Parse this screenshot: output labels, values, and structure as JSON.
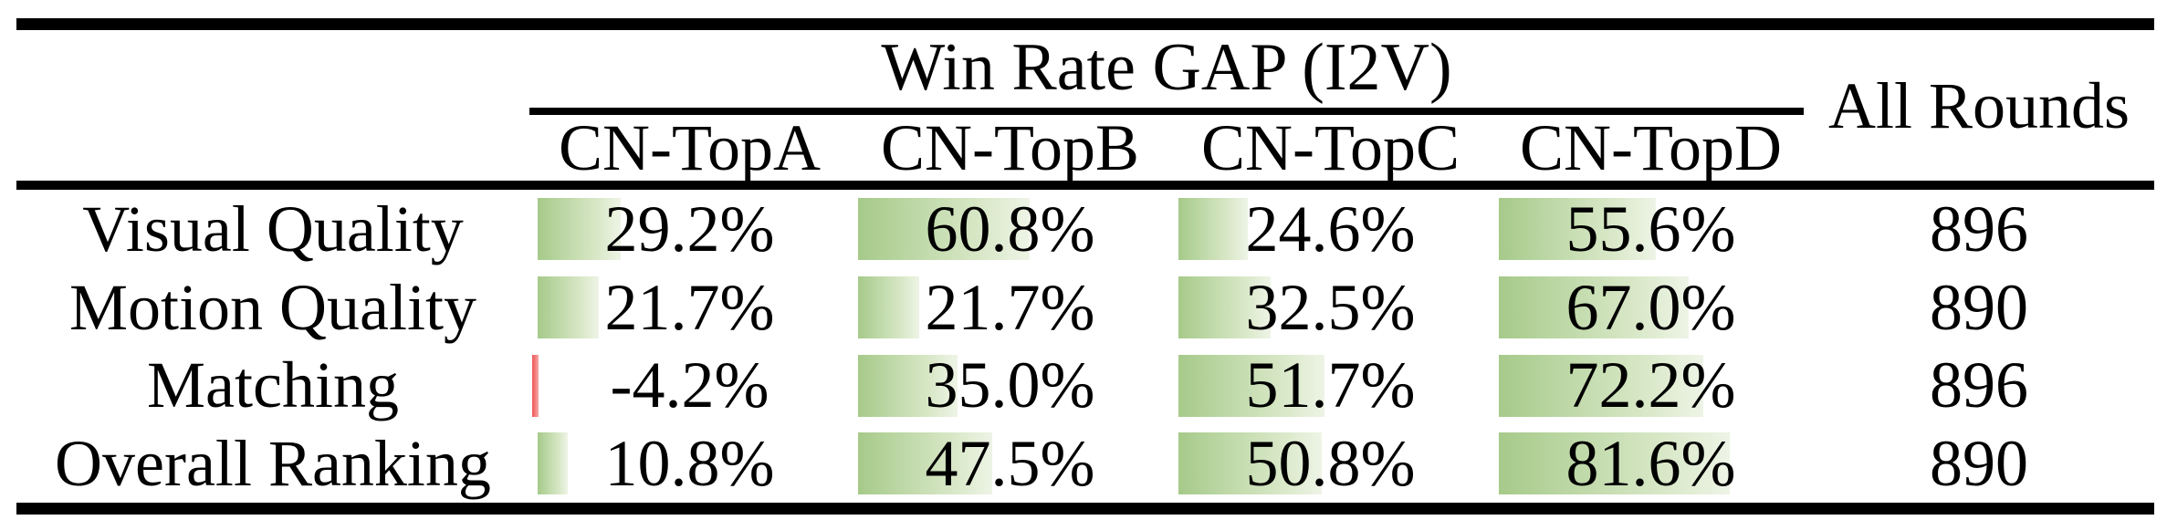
{
  "table": {
    "title": "Win Rate GAP (I2V)",
    "all_rounds_header": "All Rounds",
    "column_headers": [
      "CN-TopA",
      "CN-TopB",
      "CN-TopC",
      "CN-TopD"
    ],
    "rows": [
      {
        "label": "Visual Quality",
        "cells": [
          {
            "pct": 29.2,
            "text": "29.2%"
          },
          {
            "pct": 60.8,
            "text": "60.8%"
          },
          {
            "pct": 24.6,
            "text": "24.6%"
          },
          {
            "pct": 55.6,
            "text": "55.6%"
          }
        ],
        "all_rounds": "896"
      },
      {
        "label": "Motion Quality",
        "cells": [
          {
            "pct": 21.7,
            "text": "21.7%"
          },
          {
            "pct": 21.7,
            "text": "21.7%"
          },
          {
            "pct": 32.5,
            "text": "32.5%"
          },
          {
            "pct": 67.0,
            "text": "67.0%"
          }
        ],
        "all_rounds": "890"
      },
      {
        "label": "Matching",
        "cells": [
          {
            "pct": -4.2,
            "text": "-4.2%"
          },
          {
            "pct": 35.0,
            "text": "35.0%"
          },
          {
            "pct": 51.7,
            "text": "51.7%"
          },
          {
            "pct": 72.2,
            "text": "72.2%"
          }
        ],
        "all_rounds": "896"
      },
      {
        "label": "Overall Ranking",
        "cells": [
          {
            "pct": 10.8,
            "text": "10.8%"
          },
          {
            "pct": 47.5,
            "text": "47.5%"
          },
          {
            "pct": 50.8,
            "text": "50.8%"
          },
          {
            "pct": 81.6,
            "text": "81.6%"
          }
        ],
        "all_rounds": "890"
      }
    ],
    "colors": {
      "bar_green_start": "#a6ca8a",
      "bar_green_mid": "#d9e8c8",
      "bar_green_end": "#eef4e6",
      "bar_red_start": "#ef5555",
      "bar_red_end": "#f9a8a8",
      "rule": "#000000",
      "text": "#000000",
      "background": "#ffffff"
    }
  },
  "chart_data": {
    "type": "table",
    "title": "Win Rate GAP (I2V)",
    "categories": [
      "Visual Quality",
      "Motion Quality",
      "Matching",
      "Overall Ranking"
    ],
    "series": [
      {
        "name": "CN-TopA",
        "values": [
          29.2,
          21.7,
          -4.2,
          10.8
        ],
        "unit": "%"
      },
      {
        "name": "CN-TopB",
        "values": [
          60.8,
          21.7,
          35.0,
          47.5
        ],
        "unit": "%"
      },
      {
        "name": "CN-TopC",
        "values": [
          24.6,
          32.5,
          51.7,
          50.8
        ],
        "unit": "%"
      },
      {
        "name": "CN-TopD",
        "values": [
          55.6,
          67.0,
          72.2,
          81.6
        ],
        "unit": "%"
      },
      {
        "name": "All Rounds",
        "values": [
          896,
          890,
          896,
          890
        ],
        "unit": "rounds"
      }
    ],
    "layout_hints": {
      "in_cell_data_bars": true,
      "positive_bar_color": "green-gradient",
      "negative_bar_color": "red",
      "bar_scale": "width proportional to percent"
    }
  }
}
